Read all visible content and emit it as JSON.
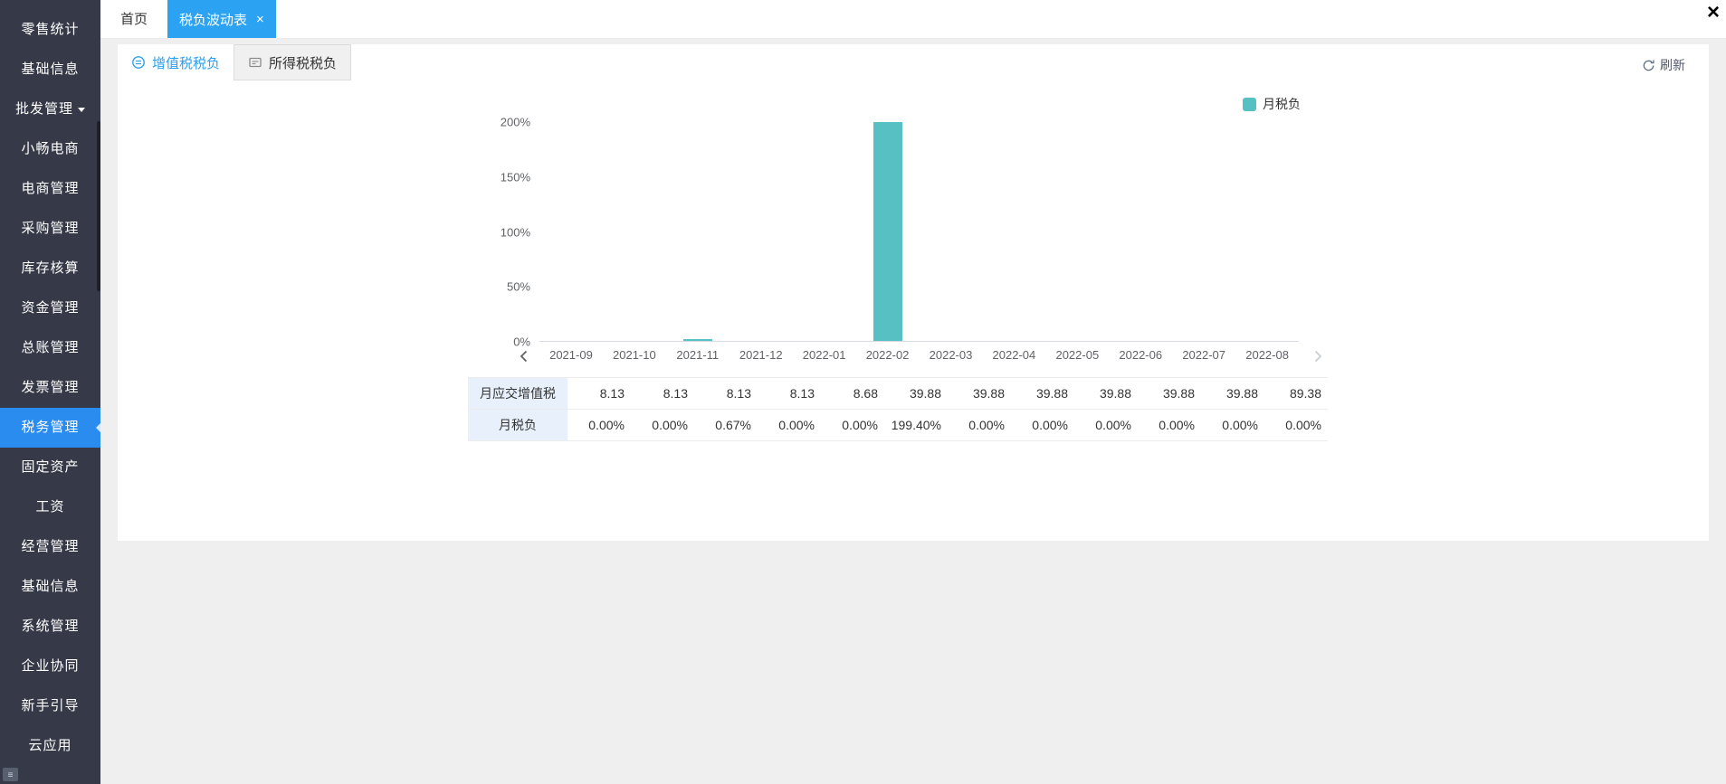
{
  "colors": {
    "accent_blue": "#2ba2f2",
    "sidebar_active_blue": "#2b8cf0",
    "bar_teal": "#57c0c2",
    "sidebar_bg": "#363a48",
    "table_header_bg": "#e8f1fb"
  },
  "sidebar": {
    "items": [
      {
        "label": "零售统计"
      },
      {
        "label": "基础信息"
      },
      {
        "label": "批发管理",
        "caret": true
      },
      {
        "label": "小畅电商"
      },
      {
        "label": "电商管理"
      },
      {
        "label": "采购管理"
      },
      {
        "label": "库存核算"
      },
      {
        "label": "资金管理"
      },
      {
        "label": "总账管理"
      },
      {
        "label": "发票管理"
      },
      {
        "label": "税务管理",
        "active": true
      },
      {
        "label": "固定资产"
      },
      {
        "label": "工资"
      },
      {
        "label": "经营管理"
      },
      {
        "label": "基础信息"
      },
      {
        "label": "系统管理"
      },
      {
        "label": "企业协同"
      },
      {
        "label": "新手引导"
      },
      {
        "label": "云应用"
      }
    ]
  },
  "tabbar": {
    "tabs": [
      {
        "label": "首页",
        "active": false
      },
      {
        "label": "税负波动表",
        "active": true
      }
    ],
    "tab_close": "×",
    "window_close": "×"
  },
  "toolbar": {
    "tabs": [
      {
        "label": "增值税税负",
        "active": true
      },
      {
        "label": "所得税税负",
        "active": false
      }
    ],
    "refresh_label": "刷新"
  },
  "chart_data": {
    "type": "bar",
    "title": "",
    "categories": [
      "2021-09",
      "2021-10",
      "2021-11",
      "2021-12",
      "2022-01",
      "2022-02",
      "2022-03",
      "2022-04",
      "2022-05",
      "2022-06",
      "2022-07",
      "2022-08"
    ],
    "series": [
      {
        "name": "月税负",
        "values": [
          0,
          0,
          0.67,
          0,
          0,
          199.4,
          0,
          0,
          0,
          0,
          0,
          0
        ]
      }
    ],
    "y_ticks": [
      "0%",
      "50%",
      "100%",
      "150%",
      "200%"
    ],
    "ylim": [
      0,
      200
    ],
    "bar_color": "#57c0c2",
    "legend_position": "top-right",
    "grid": false
  },
  "table": {
    "rows": [
      {
        "header": "月应交增值税",
        "values": [
          "8.13",
          "8.13",
          "8.13",
          "8.13",
          "8.68",
          "39.88",
          "39.88",
          "39.88",
          "39.88",
          "39.88",
          "39.88",
          "89.38"
        ]
      },
      {
        "header": "月税负",
        "values": [
          "0.00%",
          "0.00%",
          "0.67%",
          "0.00%",
          "0.00%",
          "199.40%",
          "0.00%",
          "0.00%",
          "0.00%",
          "0.00%",
          "0.00%",
          "0.00%"
        ]
      }
    ]
  }
}
